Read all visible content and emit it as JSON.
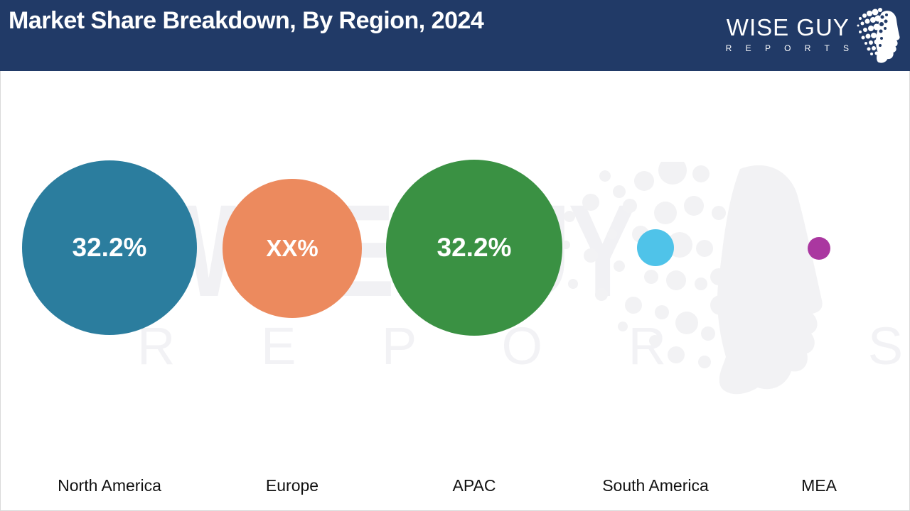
{
  "header": {
    "title": "Market Share Breakdown, By Region, 2024",
    "bg_color": "#213a67",
    "logo": {
      "line1": "WISE GUY",
      "line2": "R E P O R T S"
    }
  },
  "watermark": {
    "line1": "WISE GUY",
    "line2": "R E P O R T S"
  },
  "chart_data": {
    "type": "bubble",
    "title": "Market Share Breakdown, By Region, 2024",
    "categories": [
      "North America",
      "Europe",
      "APAC",
      "South America",
      "MEA"
    ],
    "series": [
      {
        "name": "North America",
        "label": "32.2%",
        "value": 32.2,
        "color": "#2b7d9e",
        "radius_px": 123
      },
      {
        "name": "Europe",
        "label": "XX%",
        "value": null,
        "color": "#ec8a5e",
        "radius_px": 98
      },
      {
        "name": "APAC",
        "label": "32.2%",
        "value": 32.2,
        "color": "#3a9143",
        "radius_px": 124
      },
      {
        "name": "South America",
        "label": "",
        "value": null,
        "color": "#4fc3e9",
        "radius_px": 26
      },
      {
        "name": "MEA",
        "label": "",
        "value": null,
        "color": "#aa37a0",
        "radius_px": 16
      }
    ],
    "legend_position": "labels-below-bubbles"
  }
}
